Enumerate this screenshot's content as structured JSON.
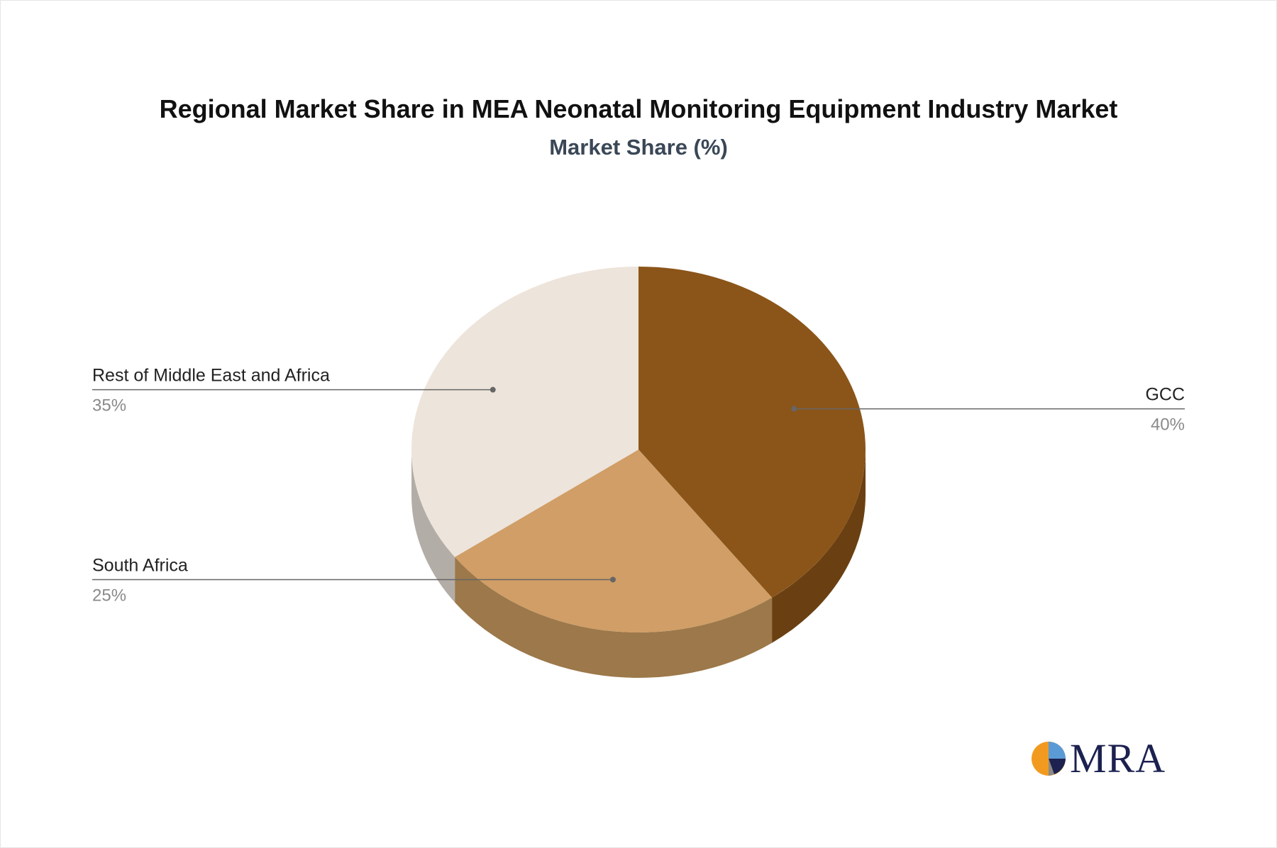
{
  "title": "Regional Market Share in MEA Neonatal Monitoring Equipment Industry Market",
  "subtitle": "Market Share (%)",
  "logo_text": "MRA",
  "chart_data": {
    "type": "pie",
    "title": "Regional Market Share in MEA Neonatal Monitoring Equipment Industry Market",
    "subtitle": "Market Share (%)",
    "three_d": true,
    "slices": [
      {
        "name": "GCC",
        "value": 40,
        "label": "40%",
        "color": "#8b5519",
        "side_color": "#6a4012"
      },
      {
        "name": "South Africa",
        "value": 25,
        "label": "25%",
        "color": "#d09e66",
        "side_color": "#9c784a"
      },
      {
        "name": "Rest of Middle East and Africa",
        "value": 35,
        "label": "35%",
        "color": "#ede4db",
        "side_color": "#b3ada7"
      }
    ]
  },
  "colors": {
    "title": "#111111",
    "subtitle": "#3a4756",
    "label": "#222222",
    "percent": "#8a8a8a",
    "leader": "#666666",
    "logo_navy": "#1c2150",
    "logo_orange": "#f29a1f",
    "logo_blue": "#5b9bd5"
  }
}
